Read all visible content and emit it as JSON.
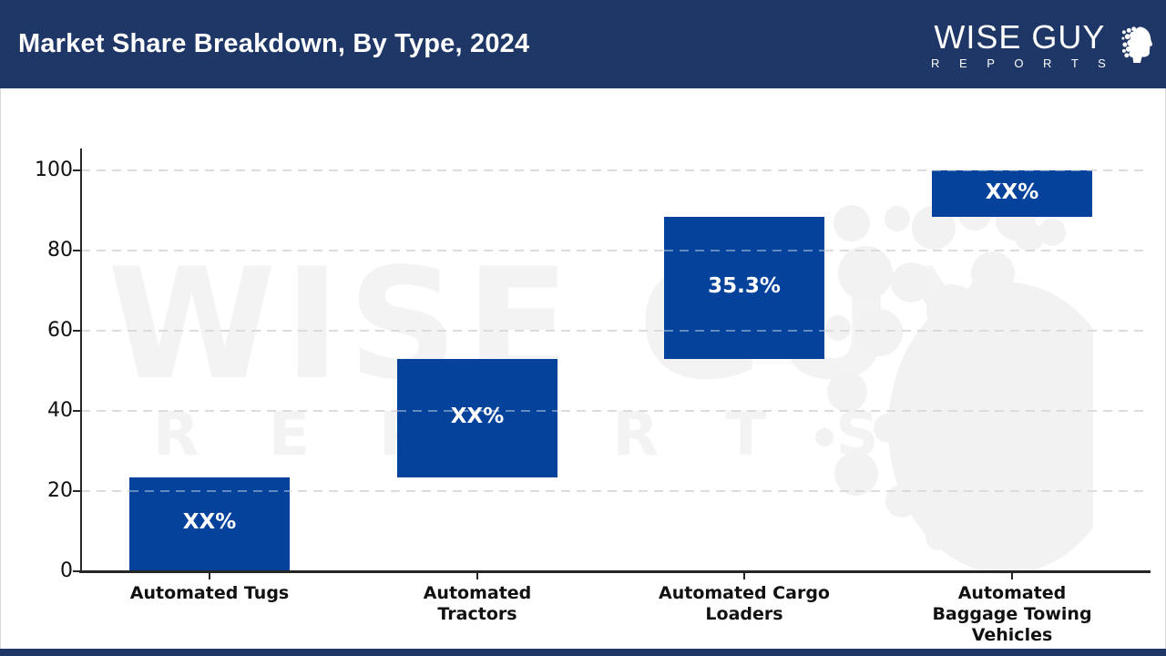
{
  "header": {
    "title": "Market Share Breakdown, By Type, 2024",
    "bg_color": "#1f3766",
    "logo": {
      "line1": "WISE GUY",
      "line2": "R E P O R T S"
    }
  },
  "watermark": {
    "line1": "WISE GUY",
    "line2": "REPORTS"
  },
  "chart_data": {
    "type": "bar",
    "subtype": "waterfall (floating segment bars)",
    "title": "Market Share Breakdown, By Type, 2024",
    "categories": [
      "Automated Tugs",
      "Automated Tractors",
      "Automated Cargo Loaders",
      "Automated Baggage Towing Vehicles"
    ],
    "segments": [
      {
        "start": 0,
        "end": 23.5,
        "value": 23.5,
        "label": "XX%"
      },
      {
        "start": 23.5,
        "end": 53.0,
        "value": 29.5,
        "label": "XX%"
      },
      {
        "start": 53.0,
        "end": 88.3,
        "value": 35.3,
        "label": "35.3%"
      },
      {
        "start": 88.3,
        "end": 100,
        "value": 11.7,
        "label": "XX%"
      }
    ],
    "xlabel": "",
    "ylabel": "",
    "ylim": [
      0,
      100
    ],
    "yticks": [
      0,
      20,
      40,
      60,
      80,
      100
    ],
    "grid": "horizontal dashed",
    "legend": "none",
    "bar_color": "#04429b",
    "grid_color": "#dcdcdc",
    "axis_color": "#262626"
  },
  "footer": {
    "bg_color": "#1f3766"
  }
}
